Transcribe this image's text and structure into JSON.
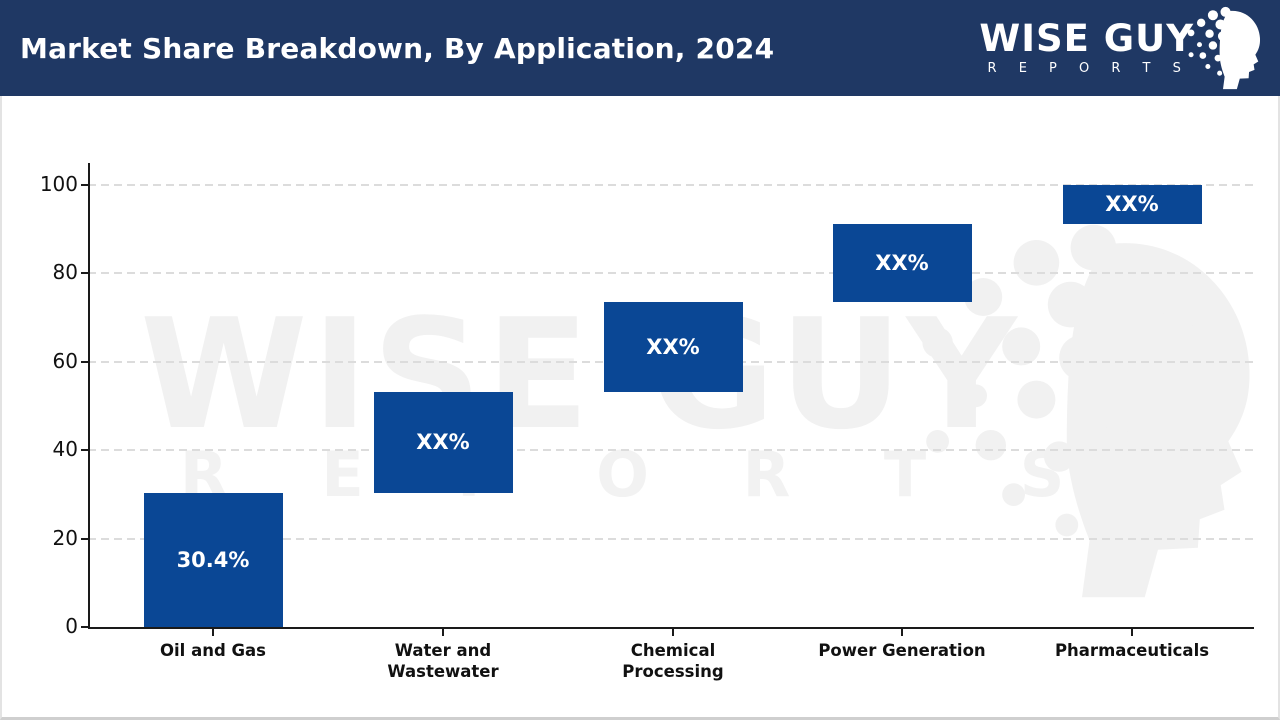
{
  "header": {
    "title": "Market Share Breakdown, By Application, 2024",
    "logo": {
      "line1": "WISE GUY",
      "line2": "R E P O R T S"
    },
    "bg_color": "#1f3864"
  },
  "watermark": {
    "line1": "WISE GUY",
    "line2": "R E P O R T S"
  },
  "chart_data": {
    "type": "bar",
    "subtype": "waterfall",
    "title": "Market Share Breakdown, By Application, 2024",
    "categories": [
      "Oil and Gas",
      "Water and Wastewater",
      "Chemical Processing",
      "Power Generation",
      "Pharmaceuticals"
    ],
    "category_label_lines": [
      [
        "Oil and Gas"
      ],
      [
        "Water and",
        "Wastewater"
      ],
      [
        "Chemical",
        "Processing"
      ],
      [
        "Power Generation"
      ],
      [
        "Pharmaceuticals"
      ]
    ],
    "segments": [
      {
        "category": "Oil and Gas",
        "start": 0,
        "end": 30.4,
        "label": "30.4%"
      },
      {
        "category": "Water and Wastewater",
        "start": 30.4,
        "end": 53.1,
        "label": "XX%"
      },
      {
        "category": "Chemical Processing",
        "start": 53.1,
        "end": 73.6,
        "label": "XX%"
      },
      {
        "category": "Power Generation",
        "start": 73.6,
        "end": 91.2,
        "label": "XX%"
      },
      {
        "category": "Pharmaceuticals",
        "start": 91.2,
        "end": 100,
        "label": "XX%"
      }
    ],
    "values_pct": [
      30.4,
      22.7,
      20.5,
      17.6,
      8.8
    ],
    "yticks": [
      0,
      20,
      40,
      60,
      80,
      100
    ],
    "ylim": [
      0,
      105
    ],
    "xlabel": "",
    "ylabel": "",
    "legend": null,
    "grid": "horizontal-dashed",
    "bar_color": "#0a4795",
    "bar_label_color": "#ffffff"
  }
}
